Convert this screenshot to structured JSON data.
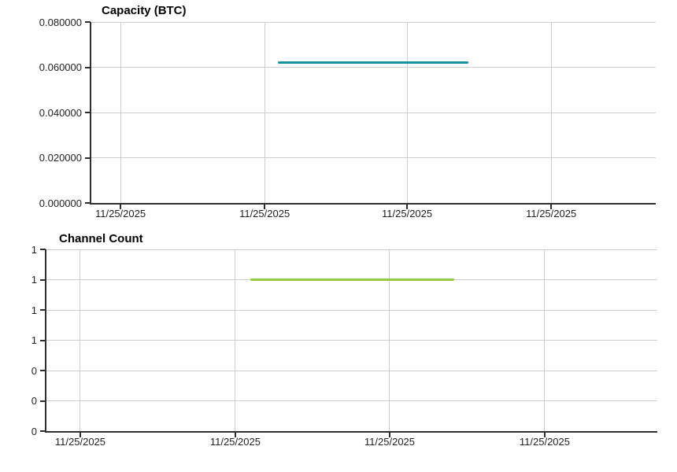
{
  "page": {
    "background": "#ffffff"
  },
  "styles": {
    "axis_color": "#2e2e2e",
    "grid_color": "#cdcdcd",
    "tick_text_color": "#1f1f1f",
    "title_color": "#000000"
  },
  "chart_data": [
    {
      "id": "capacity-chart",
      "type": "line",
      "title": "Capacity (BTC)",
      "xlabel": "",
      "ylabel": "",
      "legend": "none",
      "grid": true,
      "ylim": [
        0,
        0.08
      ],
      "y_ticks": {
        "values": [
          0.08,
          0.06,
          0.04,
          0.02,
          0
        ],
        "labels": [
          "0.080000",
          "0.060000",
          "0.040000",
          "0.020000",
          "0.000000"
        ]
      },
      "x_ticks": {
        "labels": [
          "11/25/2025",
          "11/25/2025",
          "11/25/2025",
          "11/25/2025"
        ],
        "fractions": [
          0.053,
          0.308,
          0.56,
          0.815
        ]
      },
      "series": [
        {
          "id": "capacity-series-line",
          "name": "Capacity (BTC)",
          "color": "#1692a0",
          "shape": "constant-line",
          "value": 0.062,
          "x_start_fraction": 0.3315,
          "x_end_fraction": 0.6685
        }
      ]
    },
    {
      "id": "channel-count-chart",
      "type": "line",
      "title": "Channel Count",
      "xlabel": "",
      "ylabel": "",
      "legend": "none",
      "grid": true,
      "ylim": [
        0,
        1.2
      ],
      "y_ticks": {
        "values": [
          1.2,
          1.0,
          0.8,
          0.6,
          0.4,
          0.2,
          0
        ],
        "labels": [
          "1",
          "1",
          "1",
          "1",
          "0",
          "0",
          "0"
        ]
      },
      "x_ticks": {
        "labels": [
          "11/25/2025",
          "11/25/2025",
          "11/25/2025",
          "11/25/2025"
        ],
        "fractions": [
          0.0566,
          0.3101,
          0.5624,
          0.8159
        ]
      },
      "series": [
        {
          "id": "channel-count-series-line",
          "name": "Channel Count",
          "color": "#97ca3d",
          "shape": "constant-line",
          "value": 1,
          "x_start_fraction": 0.3346,
          "x_end_fraction": 0.6679
        }
      ]
    }
  ]
}
